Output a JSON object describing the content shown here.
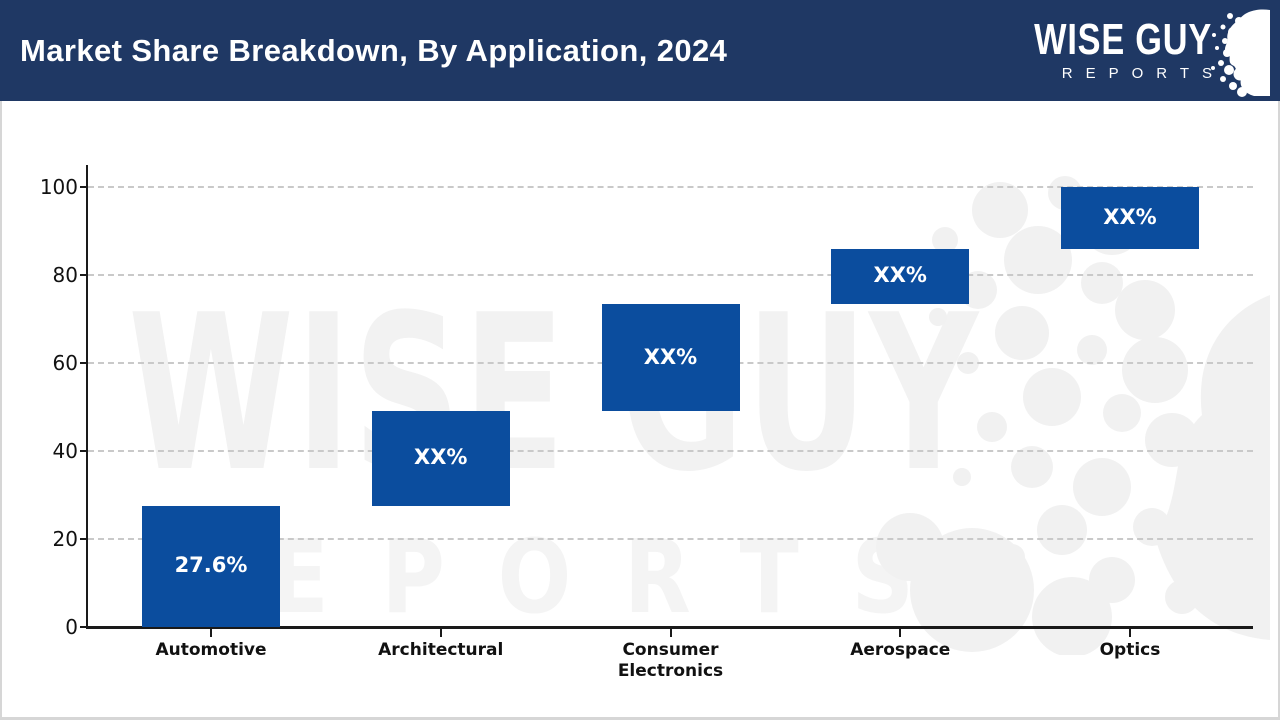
{
  "header": {
    "title": "Market Share Breakdown, By Application, 2024",
    "logo": {
      "line1": "WISE GUY",
      "line2": "REPORTS"
    }
  },
  "watermark": {
    "line1": "WISE GUY",
    "line2": "REPORTS"
  },
  "colors": {
    "header_bg": "#1F3864",
    "bar": "#0B4D9E",
    "bar_label": "#FFFFFF",
    "grid": "#C9C9C9",
    "axis": "#1A1A1A",
    "watermark": "#F2F2F2"
  },
  "chart_data": {
    "type": "bar",
    "subtype": "waterfall",
    "title": "Market Share Breakdown, By Application, 2024",
    "categories": [
      "Automotive",
      "Architectural",
      "Consumer Electronics",
      "Aerospace",
      "Optics"
    ],
    "segments": [
      {
        "category": "Automotive",
        "start": 0,
        "end": 27.6,
        "label": "27.6%"
      },
      {
        "category": "Architectural",
        "start": 27.6,
        "end": 49.0,
        "label": "XX%"
      },
      {
        "category": "Consumer Electronics",
        "start": 49.0,
        "end": 73.5,
        "label": "XX%"
      },
      {
        "category": "Aerospace",
        "start": 73.5,
        "end": 86.0,
        "label": "XX%"
      },
      {
        "category": "Optics",
        "start": 86.0,
        "end": 100.0,
        "label": "XX%"
      }
    ],
    "xlabel": "",
    "ylabel": "",
    "ylim": [
      0,
      100
    ],
    "yticks": [
      0,
      20,
      40,
      60,
      80,
      100
    ],
    "grid": "horizontal dashed",
    "legend": "none",
    "bar_value_labels_inside": true
  }
}
